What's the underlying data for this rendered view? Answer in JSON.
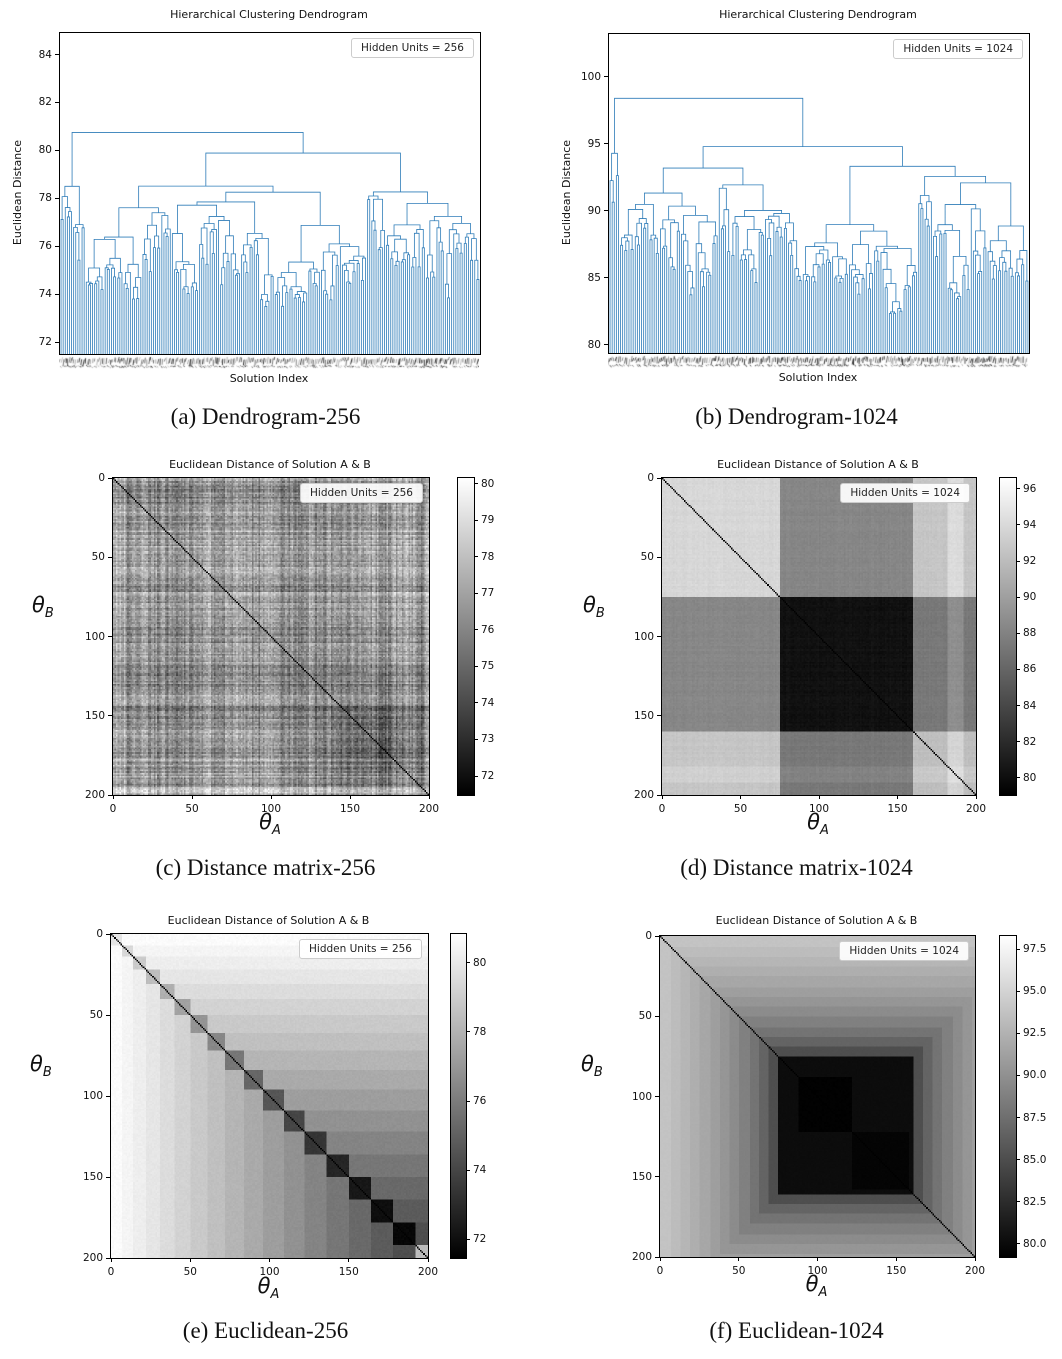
{
  "figure": {
    "background": "#ffffff",
    "frame_color": "#000000",
    "gray_map": {
      "high": "#ffffff",
      "low": "#000000"
    }
  },
  "chart_data": [
    {
      "panel": "a",
      "type": "dendrogram",
      "title": "Hierarchical Clustering Dendrogram",
      "legend": "Hidden Units = 256",
      "xlabel": "Solution Index",
      "ylabel": "Euclidean Distance",
      "caption": "(a) Dendrogram-256",
      "n_leaves": 200,
      "yticks": [
        72,
        74,
        76,
        78,
        80,
        82,
        84
      ],
      "ylim": [
        71.5,
        84.9
      ],
      "link_color": "#2e7cb8",
      "root_height": 80.75,
      "merge_floor": 71.75,
      "trend": 0.26,
      "dip": {
        "amp": 0.12,
        "center": 0.78,
        "width": 0.22
      },
      "seed": 7
    },
    {
      "panel": "b",
      "type": "dendrogram",
      "title": "Hierarchical Clustering Dendrogram",
      "legend": "Hidden Units = 1024",
      "xlabel": "Solution Index",
      "ylabel": "Euclidean Distance",
      "caption": "(b) Dendrogram-1024",
      "n_leaves": 200,
      "yticks": [
        80,
        85,
        90,
        95,
        100
      ],
      "ylim": [
        79.4,
        103.2
      ],
      "link_color": "#2e7cb8",
      "root_height": 94.8,
      "merge_floor": 79.55,
      "top_join": {
        "height": 98.4,
        "left_n": 5,
        "left_height": 94.3
      },
      "trend": 0.04,
      "dip": {
        "amp": 0.62,
        "center": 0.56,
        "width": 0.13
      },
      "seed": 11
    },
    {
      "panel": "c",
      "type": "heatmap",
      "subtype": "noise",
      "title": "Euclidean Distance of Solution A & B",
      "legend": "Hidden Units = 256",
      "caption": "(c) Distance matrix-256",
      "theta_x": {
        "sym": "θ",
        "sub": "A"
      },
      "theta_y": {
        "sym": "θ",
        "sub": "B"
      },
      "xticks": [
        0,
        50,
        100,
        150,
        200
      ],
      "yticks": [
        0,
        50,
        100,
        150,
        200
      ],
      "n": 200,
      "colorbar": {
        "ticks": [
          "80",
          "79",
          "78",
          "77",
          "76",
          "75",
          "74",
          "73",
          "72"
        ],
        "vmin": 71.48,
        "vmax": 80.16
      },
      "base": 76.6,
      "noise": {
        "row": 0.95,
        "col": 0.95,
        "block": 0.55,
        "pixel": 0.8
      },
      "features": {
        "edge_light": 1.5,
        "edge_lo": 2,
        "edge_hi": 194,
        "dark_blob": {
          "x": 168,
          "y": 168,
          "sigma": 22,
          "amp": -1.8
        }
      },
      "diag_value": 71.6,
      "seed": 21
    },
    {
      "panel": "d",
      "type": "heatmap",
      "subtype": "blocks",
      "title": "Euclidean Distance of Solution A & B",
      "legend": "Hidden Units = 1024",
      "caption": "(d) Distance matrix-1024",
      "theta_x": {
        "sym": "θ",
        "sub": "A"
      },
      "theta_y": {
        "sym": "θ",
        "sub": "B"
      },
      "xticks": [
        0,
        50,
        100,
        150,
        200
      ],
      "yticks": [
        0,
        50,
        100,
        150,
        200
      ],
      "n": 200,
      "colorbar": {
        "ticks": [
          "96",
          "94",
          "92",
          "90",
          "88",
          "86",
          "84",
          "82",
          "80"
        ],
        "vmin": 79.05,
        "vmax": 96.6
      },
      "edges": [
        0,
        75,
        160,
        200
      ],
      "values": [
        [
          93.8,
          88.3,
          92.6
        ],
        [
          88.3,
          80.2,
          87.3
        ],
        [
          92.6,
          87.3,
          92.1
        ]
      ],
      "light_strip": {
        "from": 182,
        "to": 191,
        "col_amp": 1.6,
        "row_amp": 0.7
      },
      "noise": {
        "row": 0.3,
        "col": 0.3,
        "pixel": 0.25
      },
      "diag_value": 79.1,
      "seed": 31
    },
    {
      "panel": "e",
      "type": "heatmap",
      "subtype": "staircase",
      "title": "Euclidean Distance of Solution A & B",
      "legend": "Hidden Units = 256",
      "caption": "(e) Euclidean-256",
      "theta_x": {
        "sym": "θ",
        "sub": "A"
      },
      "theta_y": {
        "sym": "θ",
        "sub": "B"
      },
      "xticks": [
        0,
        50,
        100,
        150,
        200
      ],
      "yticks": [
        0,
        50,
        100,
        150,
        200
      ],
      "n": 200,
      "colorbar": {
        "ticks": [
          "80",
          "78",
          "76",
          "74",
          "72"
        ],
        "vmin": 71.45,
        "vmax": 80.84
      },
      "cluster_edges": [
        0,
        7,
        14,
        22,
        31,
        40,
        50,
        61,
        72,
        84,
        96,
        109,
        122,
        136,
        150,
        164,
        178,
        192,
        200
      ],
      "band_values": [
        80.7,
        80.45,
        80.2,
        79.9,
        79.55,
        79.2,
        78.85,
        78.5,
        78.1,
        77.7,
        77.25,
        76.8,
        76.3,
        75.8,
        75.3,
        74.8,
        74.3,
        79.0
      ],
      "diag_values": [
        79.9,
        79.4,
        78.9,
        78.4,
        77.9,
        77.4,
        76.9,
        76.4,
        75.8,
        75.2,
        74.6,
        74.0,
        73.4,
        72.8,
        72.3,
        71.95,
        71.7,
        78.4
      ],
      "noise": {
        "pixel": 0.12
      },
      "diag_value": 71.5,
      "seed": 41
    },
    {
      "panel": "f",
      "type": "heatmap",
      "subtype": "rings",
      "title": "Euclidean Distance of Solution A & B",
      "legend": "Hidden Units = 1024",
      "caption": "(f) Euclidean-1024",
      "theta_x": {
        "sym": "θ",
        "sub": "A"
      },
      "theta_y": {
        "sym": "θ",
        "sub": "B"
      },
      "xticks": [
        0,
        50,
        100,
        150,
        200
      ],
      "yticks": [
        0,
        50,
        100,
        150,
        200
      ],
      "n": 200,
      "colorbar": {
        "ticks": [
          "97.5",
          "95.0",
          "92.5",
          "90.0",
          "87.5",
          "85.0",
          "82.5",
          "80.0"
        ],
        "vmin": 79.2,
        "vmax": 98.3
      },
      "center_block": [
        75,
        160
      ],
      "ring_step": 6.25,
      "base": 80.1,
      "ring_gain": 13.5,
      "ring_pow": 0.42,
      "sub_blocks": [
        {
          "from": 88,
          "to": 122,
          "value": 79.3
        },
        {
          "from": 122,
          "to": 158,
          "value": 79.5
        }
      ],
      "noise": {
        "pixel": 0.08
      },
      "diag_value": 78.8,
      "seed": 51
    }
  ]
}
